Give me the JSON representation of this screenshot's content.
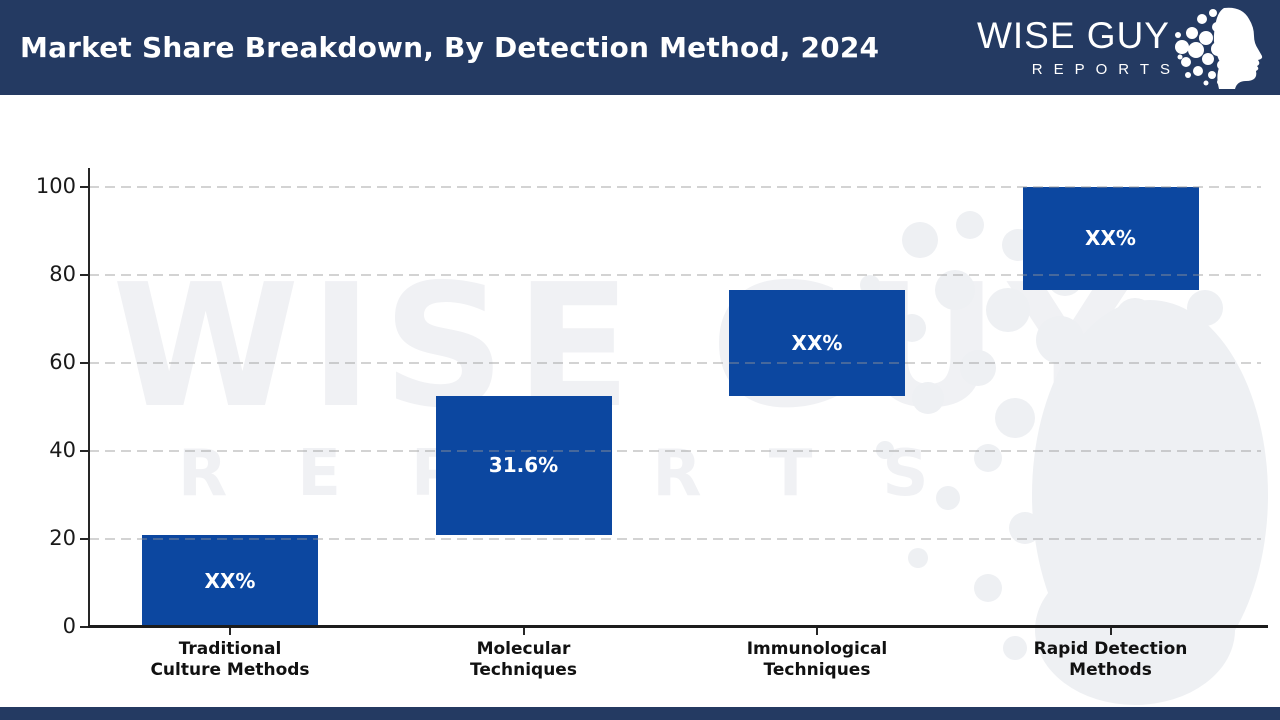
{
  "header": {
    "title": "Market Share Breakdown, By Detection Method, 2024",
    "logo": {
      "line1": "WISE GUY",
      "line2": "REPORTS"
    }
  },
  "watermark": {
    "line1": "WISE GUY",
    "line2": "REPORTS"
  },
  "chart_data": {
    "type": "bar",
    "subtype": "waterfall",
    "title": "Market Share Breakdown, By Detection Method, 2024",
    "categories": [
      "Traditional Culture Methods",
      "Molecular Techniques",
      "Immunological Techniques",
      "Rapid Detection Methods"
    ],
    "category_lines": [
      [
        "Traditional",
        "Culture Methods"
      ],
      [
        "Molecular",
        "Techniques"
      ],
      [
        "Immunological",
        "Techniques"
      ],
      [
        "Rapid Detection",
        "Methods"
      ]
    ],
    "segments": [
      {
        "from": 0,
        "to": 21,
        "label": "XX%"
      },
      {
        "from": 21,
        "to": 52.6,
        "label": "31.6%"
      },
      {
        "from": 52.6,
        "to": 76.6,
        "label": "XX%"
      },
      {
        "from": 76.6,
        "to": 100,
        "label": "XX%"
      }
    ],
    "values": [
      21,
      31.6,
      24,
      23.4
    ],
    "xlabel": "",
    "ylabel": "",
    "ylim": [
      0,
      100
    ],
    "yticks": [
      0,
      20,
      40,
      60,
      80,
      100
    ],
    "grid": "dashed-horizontal",
    "legend": "none",
    "bar_color": "#0c47a0",
    "bar_label_color": "#ffffff"
  },
  "colors": {
    "header_bg": "#243a62",
    "footer_bg": "#243a62",
    "watermark": "#f0f1f4",
    "axis": "#262626",
    "grid_dash": "#d6d6d6",
    "category_text": "#111111"
  }
}
